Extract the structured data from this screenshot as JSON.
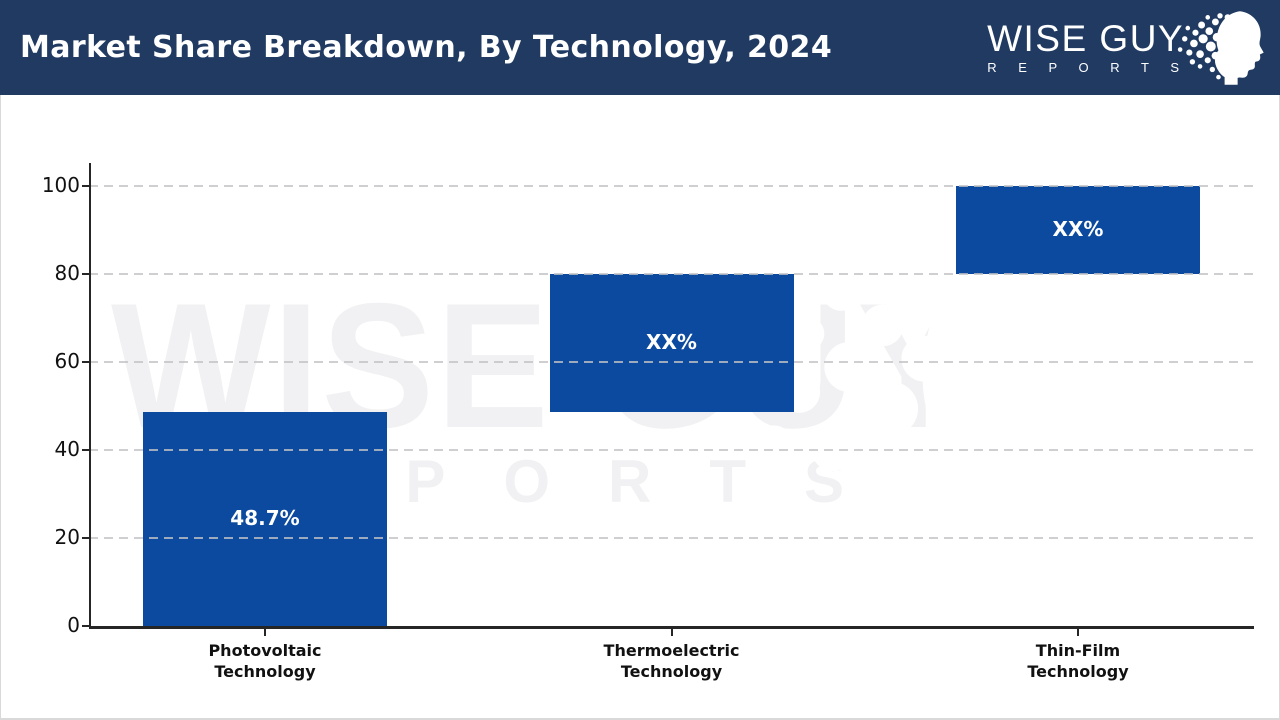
{
  "header": {
    "title": "Market Share Breakdown, By Technology, 2024",
    "bg_color": "#203a62",
    "logo": {
      "line1": "WISE GUY",
      "line2": "R E P O R T S"
    }
  },
  "watermark": {
    "line1": "WISE GUY",
    "line2": "REPORTS"
  },
  "chart_data": {
    "type": "bar",
    "subtype": "waterfall",
    "title": "Market Share Breakdown, By Technology, 2024",
    "categories": [
      "Photovoltaic Technology",
      "Thermoelectric Technology",
      "Thin-Film Technology"
    ],
    "bars": [
      {
        "category": "Photovoltaic\nTechnology",
        "label": "48.7%",
        "start": 0,
        "end": 48.7
      },
      {
        "category": "Thermoelectric\nTechnology",
        "label": "XX%",
        "start": 48.7,
        "end": 80
      },
      {
        "category": "Thin-Film\nTechnology",
        "label": "XX%",
        "start": 80,
        "end": 100
      }
    ],
    "yticks": [
      0,
      20,
      40,
      60,
      80,
      100
    ],
    "ylim": [
      0,
      105
    ],
    "grid": "horizontal-dashed",
    "legend": "none",
    "xlabel": "",
    "ylabel": "",
    "bar_color": "#0b4a9e",
    "bar_label_color": "#ffffff",
    "axis_color": "#262626",
    "grid_color": "#d6d6d6"
  }
}
